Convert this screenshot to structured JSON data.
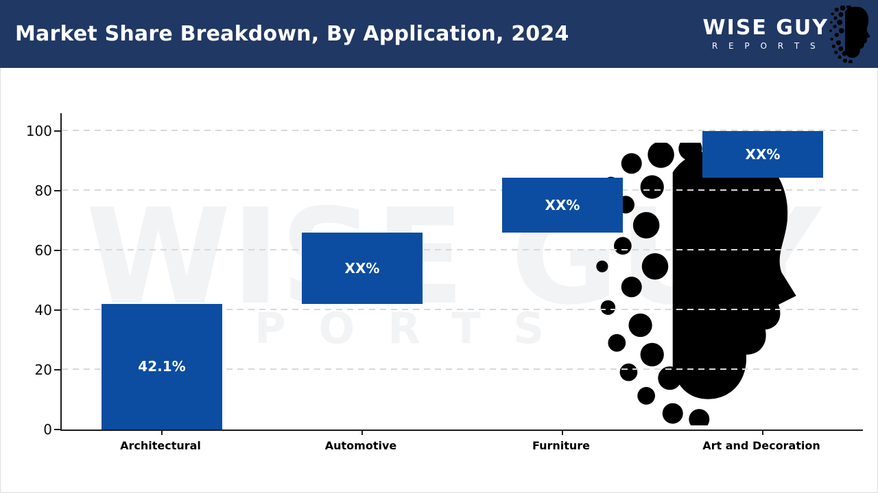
{
  "header": {
    "title": "Market Share Breakdown, By Application, 2024",
    "logo": {
      "brand": "WISE GUY",
      "brand_sub": "R E P O R T S"
    }
  },
  "watermark": {
    "line1": "WISE GUY",
    "line2": "REPORTS"
  },
  "chart_data": {
    "type": "bar",
    "subtype": "waterfall-stacked-breakdown",
    "title": "Market Share Breakdown, By Application, 2024",
    "categories": [
      "Architectural",
      "Automotive",
      "Furniture",
      "Art and Decoration"
    ],
    "segments": [
      {
        "category": "Architectural",
        "start": 0,
        "end": 42.1,
        "label": "42.1%"
      },
      {
        "category": "Automotive",
        "start": 42.1,
        "end": 66,
        "label": "XX%"
      },
      {
        "category": "Furniture",
        "start": 66,
        "end": 84.3,
        "label": "XX%"
      },
      {
        "category": "Art and Decoration",
        "start": 84.3,
        "end": 100,
        "label": "XX%"
      }
    ],
    "xlabel": "",
    "ylabel": "",
    "yticks": [
      0,
      20,
      40,
      60,
      80,
      100
    ],
    "ylim": [
      0,
      106
    ],
    "grid": "horizontal-dashed",
    "legend": false,
    "bar_color": "#0c4da2",
    "bar_label_color": "#ffffff"
  },
  "colors": {
    "header_bg": "#203864",
    "page_bg": "#ffffff",
    "axis": "#1a1a1a",
    "gridline": "#d8d8d8",
    "watermark": "#f2f3f5",
    "text": "#000000"
  }
}
